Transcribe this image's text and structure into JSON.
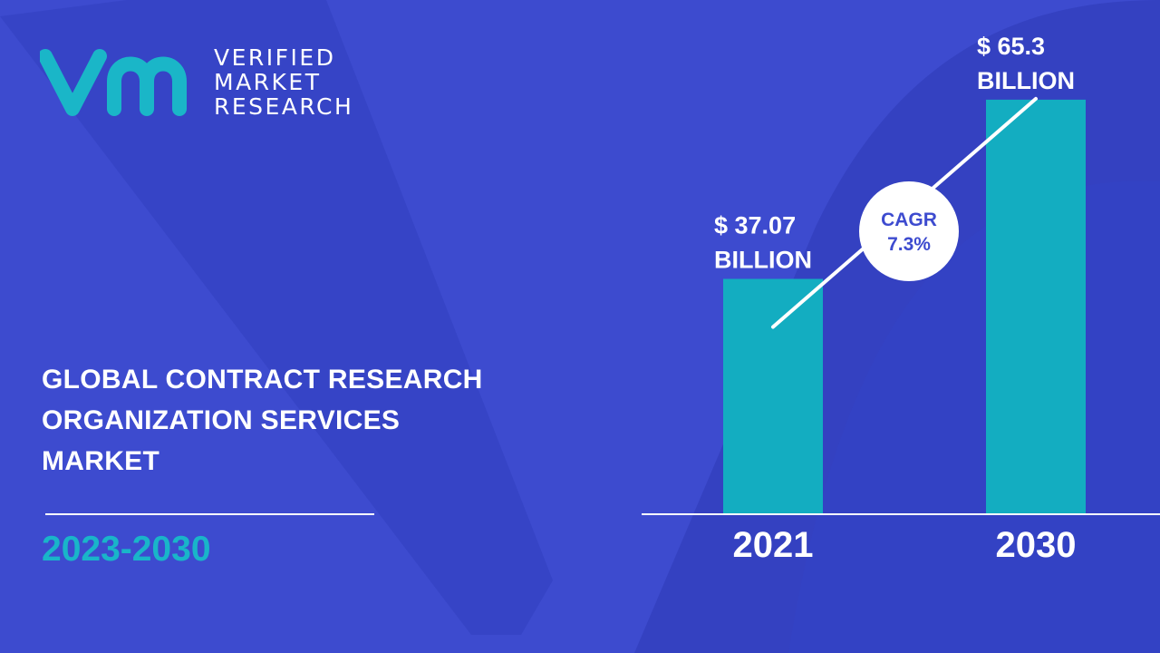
{
  "logo": {
    "words": [
      "VERIFIED",
      "MARKET",
      "RESEARCH"
    ],
    "mark_color": "#1ab6c8"
  },
  "title": {
    "lines": [
      "GLOBAL CONTRACT RESEARCH",
      "ORGANIZATION SERVICES",
      "MARKET"
    ]
  },
  "period": "2023-2030",
  "cagr": {
    "label": "CAGR",
    "value": "7.3%"
  },
  "colors": {
    "background": "#3d4bcf",
    "bar": "#13adc1",
    "accent": "#19b5c9",
    "text": "#ffffff"
  },
  "chart_data": {
    "type": "bar",
    "categories": [
      "2021",
      "2030"
    ],
    "values": [
      37.07,
      65.3
    ],
    "value_labels": [
      [
        "$ 37.07",
        "BILLION"
      ],
      [
        "$ 65.3",
        "BILLION"
      ]
    ],
    "ylim": [
      0,
      90
    ],
    "unit": "USD billion",
    "trend_line": true
  }
}
